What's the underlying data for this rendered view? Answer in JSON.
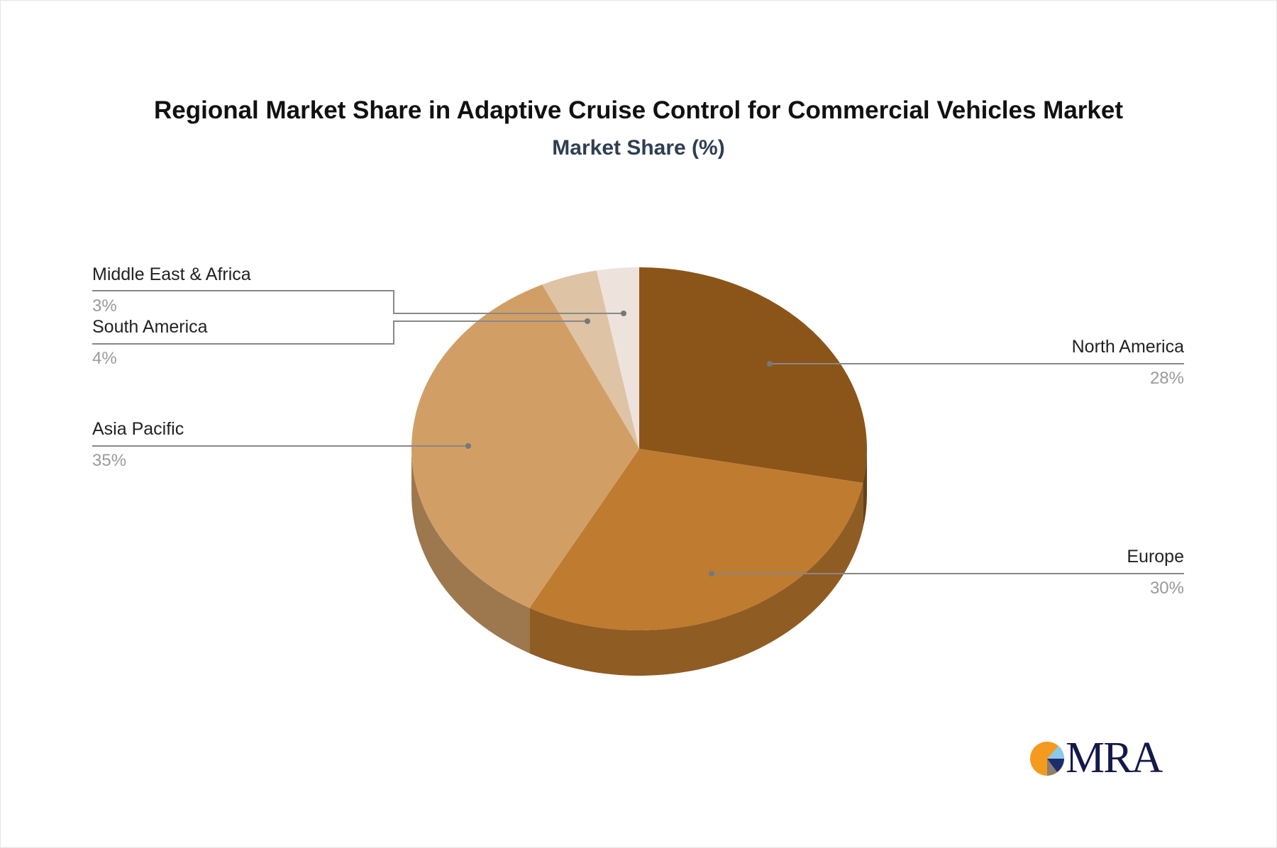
{
  "chart_data": {
    "type": "pie",
    "title": "Regional Market Share in Adaptive Cruise Control for Commercial Vehicles Market",
    "subtitle": "Market Share (%)",
    "style": "3d",
    "slices": [
      {
        "label": "North America",
        "value": 28,
        "display": "28%",
        "color": "#8B5519"
      },
      {
        "label": "Europe",
        "value": 30,
        "display": "30%",
        "color": "#BF7B30"
      },
      {
        "label": "Asia Pacific",
        "value": 35,
        "display": "35%",
        "color": "#D19F66"
      },
      {
        "label": "South America",
        "value": 4,
        "display": "4%",
        "color": "#DEC3A5"
      },
      {
        "label": "Middle East & Africa",
        "value": 3,
        "display": "3%",
        "color": "#EEE3DC"
      }
    ],
    "legend_position": "callout labels"
  },
  "logo": {
    "text": "MRA"
  }
}
